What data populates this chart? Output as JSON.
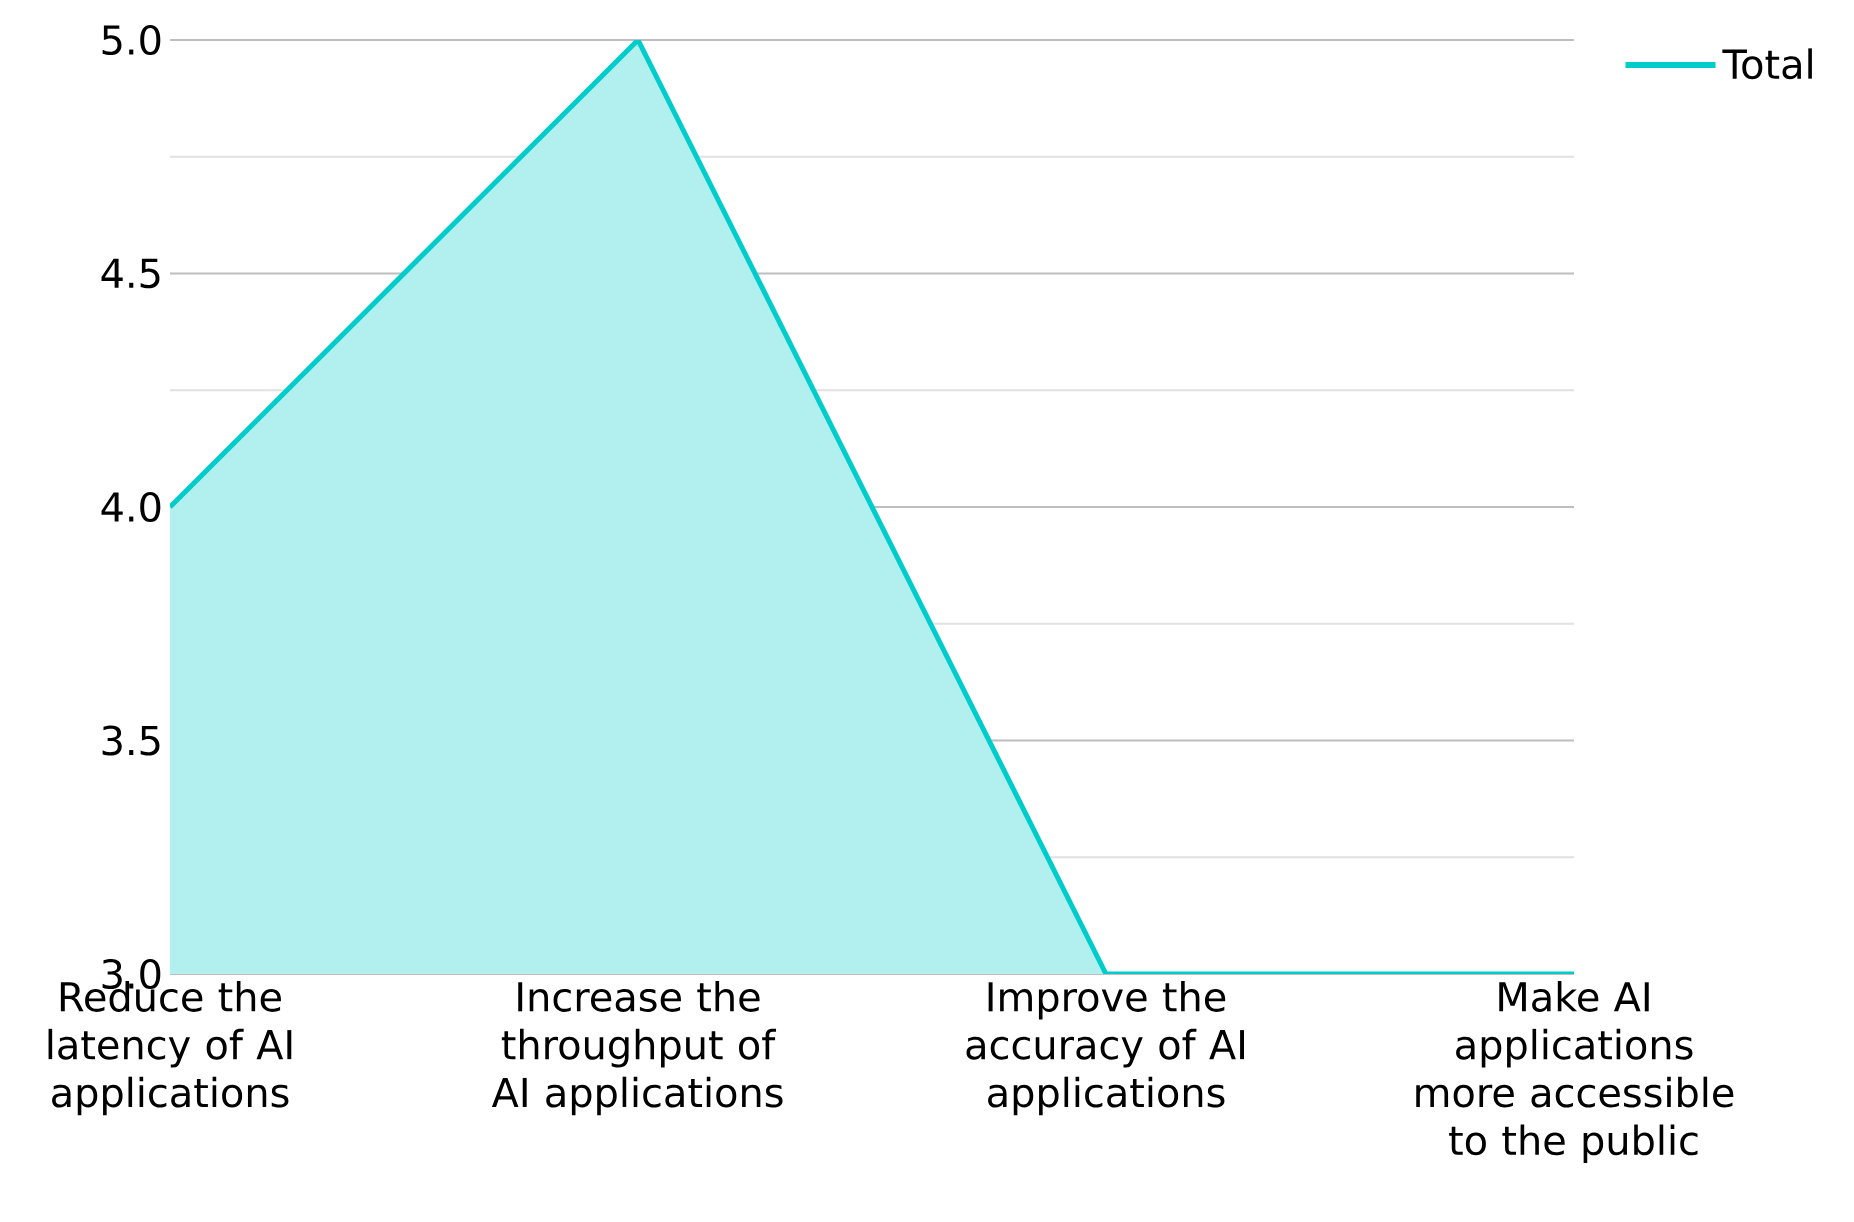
{
  "chart_data": {
    "type": "area",
    "categories": [
      "Reduce the latency of AI applications",
      "Increase the throughput of AI applications",
      "Improve the accuracy of AI applications",
      "Make AI applications more accessible to the public"
    ],
    "series": [
      {
        "name": "Total",
        "color": "#00cccc",
        "values": [
          4,
          5,
          3,
          3
        ]
      }
    ],
    "ylim": [
      3,
      5
    ],
    "yticks": [
      {
        "value": 3,
        "label": "3.0"
      },
      {
        "value": 3.25,
        "label": null
      },
      3.5,
      {
        "value": 3.75,
        "label": null
      },
      {
        "value": 4,
        "label": "4.0"
      },
      {
        "value": 4.25,
        "label": null
      },
      4.5,
      {
        "value": 4.75,
        "label": null
      },
      {
        "value": 5,
        "label": "5.0"
      }
    ],
    "grid": "y",
    "legend": "top right",
    "marker": "none"
  }
}
